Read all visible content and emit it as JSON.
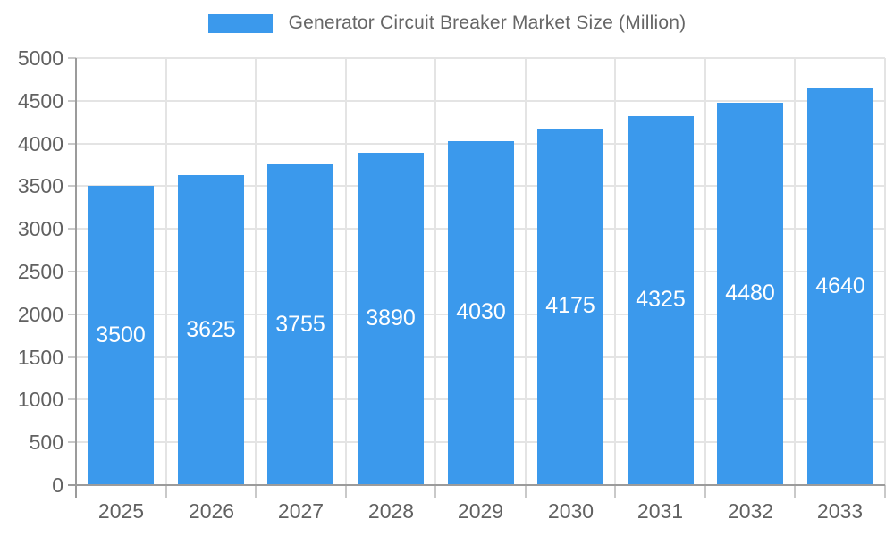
{
  "legend": {
    "label": "Generator Circuit Breaker Market Size (Million)"
  },
  "chart_data": {
    "type": "bar",
    "title": "Generator Circuit Breaker Market Size (Million)",
    "categories": [
      "2025",
      "2026",
      "2027",
      "2028",
      "2029",
      "2030",
      "2031",
      "2032",
      "2033"
    ],
    "series": [
      {
        "name": "Generator Circuit Breaker Market Size (Million)",
        "values": [
          3500,
          3625,
          3755,
          3890,
          4030,
          4175,
          4325,
          4480,
          4640
        ]
      }
    ],
    "data_labels": [
      "3500",
      "3625",
      "3755",
      "3890",
      "4030",
      "4175",
      "4325",
      "4480",
      "4640"
    ],
    "data_label_position": "inside-center",
    "xlabel": "",
    "ylabel": "",
    "ylim": [
      0,
      5000
    ],
    "yticks": [
      "0",
      "500",
      "1000",
      "1500",
      "2000",
      "2500",
      "3000",
      "3500",
      "4000",
      "4500",
      "5000"
    ],
    "grid": true,
    "legend_position": "top",
    "colors": {
      "bar": "#3b99ec",
      "bar_label": "#ffffff",
      "grid": "#e4e4e4",
      "axis": "#9b9b9b",
      "tick": "#c9c9c9",
      "axis_text": "#616161",
      "legend_text": "#666666"
    }
  }
}
